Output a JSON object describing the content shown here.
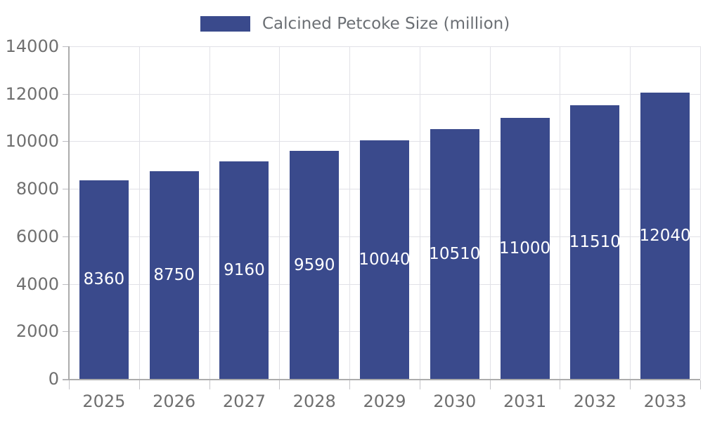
{
  "legend": {
    "label": "Calcined Petcoke Size (million)"
  },
  "chart_data": {
    "type": "bar",
    "title": "",
    "xlabel": "",
    "ylabel": "",
    "categories": [
      "2025",
      "2026",
      "2027",
      "2028",
      "2029",
      "2030",
      "2031",
      "2032",
      "2033"
    ],
    "values": [
      8360,
      8750,
      9160,
      9590,
      10040,
      10510,
      11000,
      11510,
      12040
    ],
    "value_labels": [
      "8360",
      "8750",
      "9160",
      "9590",
      "10040",
      "10510",
      "11000",
      "11510",
      "12040"
    ],
    "series_name": "Calcined Petcoke Size (million)",
    "ylim": [
      0,
      14000
    ],
    "ytick_step": 2000,
    "ytick_labels": [
      "0",
      "2000",
      "4000",
      "6000",
      "8000",
      "10000",
      "12000",
      "14000"
    ],
    "grid": true,
    "legend_position": "top",
    "bar_color": "#3a4a8c",
    "value_label_color": "#ffffff",
    "axis_text_color": "#6f6f6f"
  }
}
